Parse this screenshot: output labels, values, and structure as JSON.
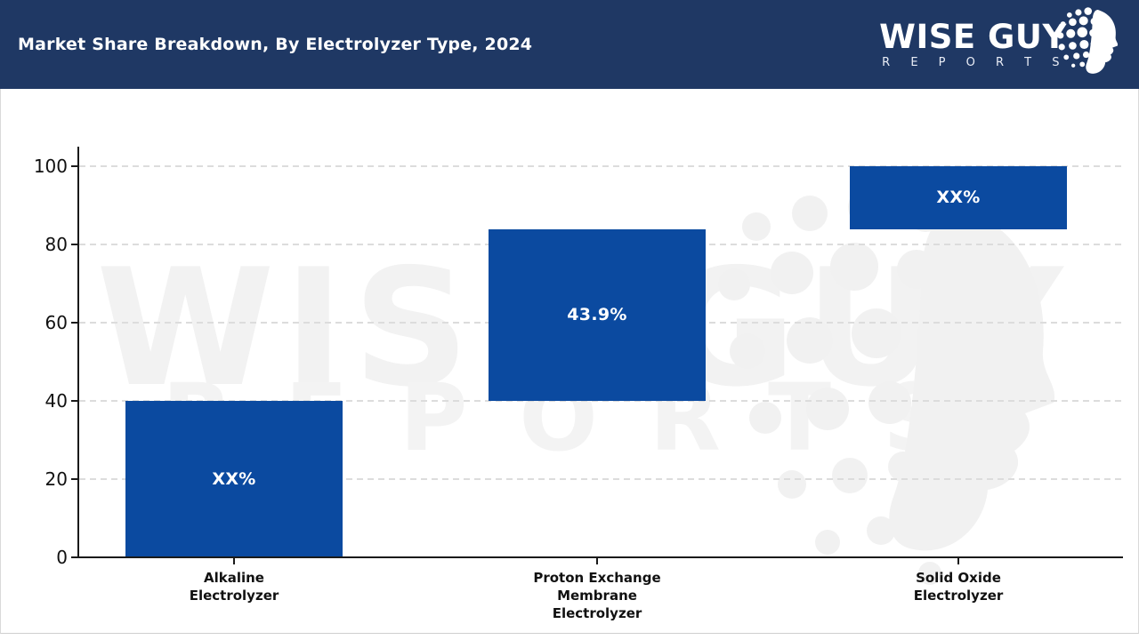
{
  "header": {
    "title": "Market Share Breakdown, By Electrolyzer Type, 2024",
    "logo": {
      "line1": "WISE GUY",
      "line2": "R E P O R T S"
    }
  },
  "watermark": {
    "line1": "WISE GUY",
    "line2": "REPORTS"
  },
  "colors": {
    "header_bg": "#1F3864",
    "bar": "#0B4AA0",
    "grid": "#dcdcdc",
    "axis": "#1a1a1a",
    "watermark": "#f2f2f2"
  },
  "chart_data": {
    "type": "bar",
    "subtype": "waterfall",
    "title": "Market Share Breakdown, By Electrolyzer Type, 2024",
    "categories": [
      [
        "Alkaline",
        "Electrolyzer"
      ],
      [
        "Proton Exchange",
        "Membrane",
        "Electrolyzer"
      ],
      [
        "Solid Oxide",
        "Electrolyzer"
      ]
    ],
    "series": [
      {
        "name": "Market Share (%)",
        "segments": [
          {
            "category": "Alkaline Electrolyzer",
            "start": 0,
            "end": 40,
            "label": "XX%"
          },
          {
            "category": "Proton Exchange Membrane Electrolyzer",
            "start": 40,
            "end": 83.9,
            "label": "43.9%"
          },
          {
            "category": "Solid Oxide Electrolyzer",
            "start": 83.9,
            "end": 100,
            "label": "XX%"
          }
        ]
      }
    ],
    "ylim": [
      0,
      100
    ],
    "yticks": [
      0,
      20,
      40,
      60,
      80,
      100
    ],
    "xlabel": "",
    "ylabel": "",
    "grid": "horizontal-dashed",
    "legend": "none",
    "bar_color": "#0B4AA0"
  }
}
